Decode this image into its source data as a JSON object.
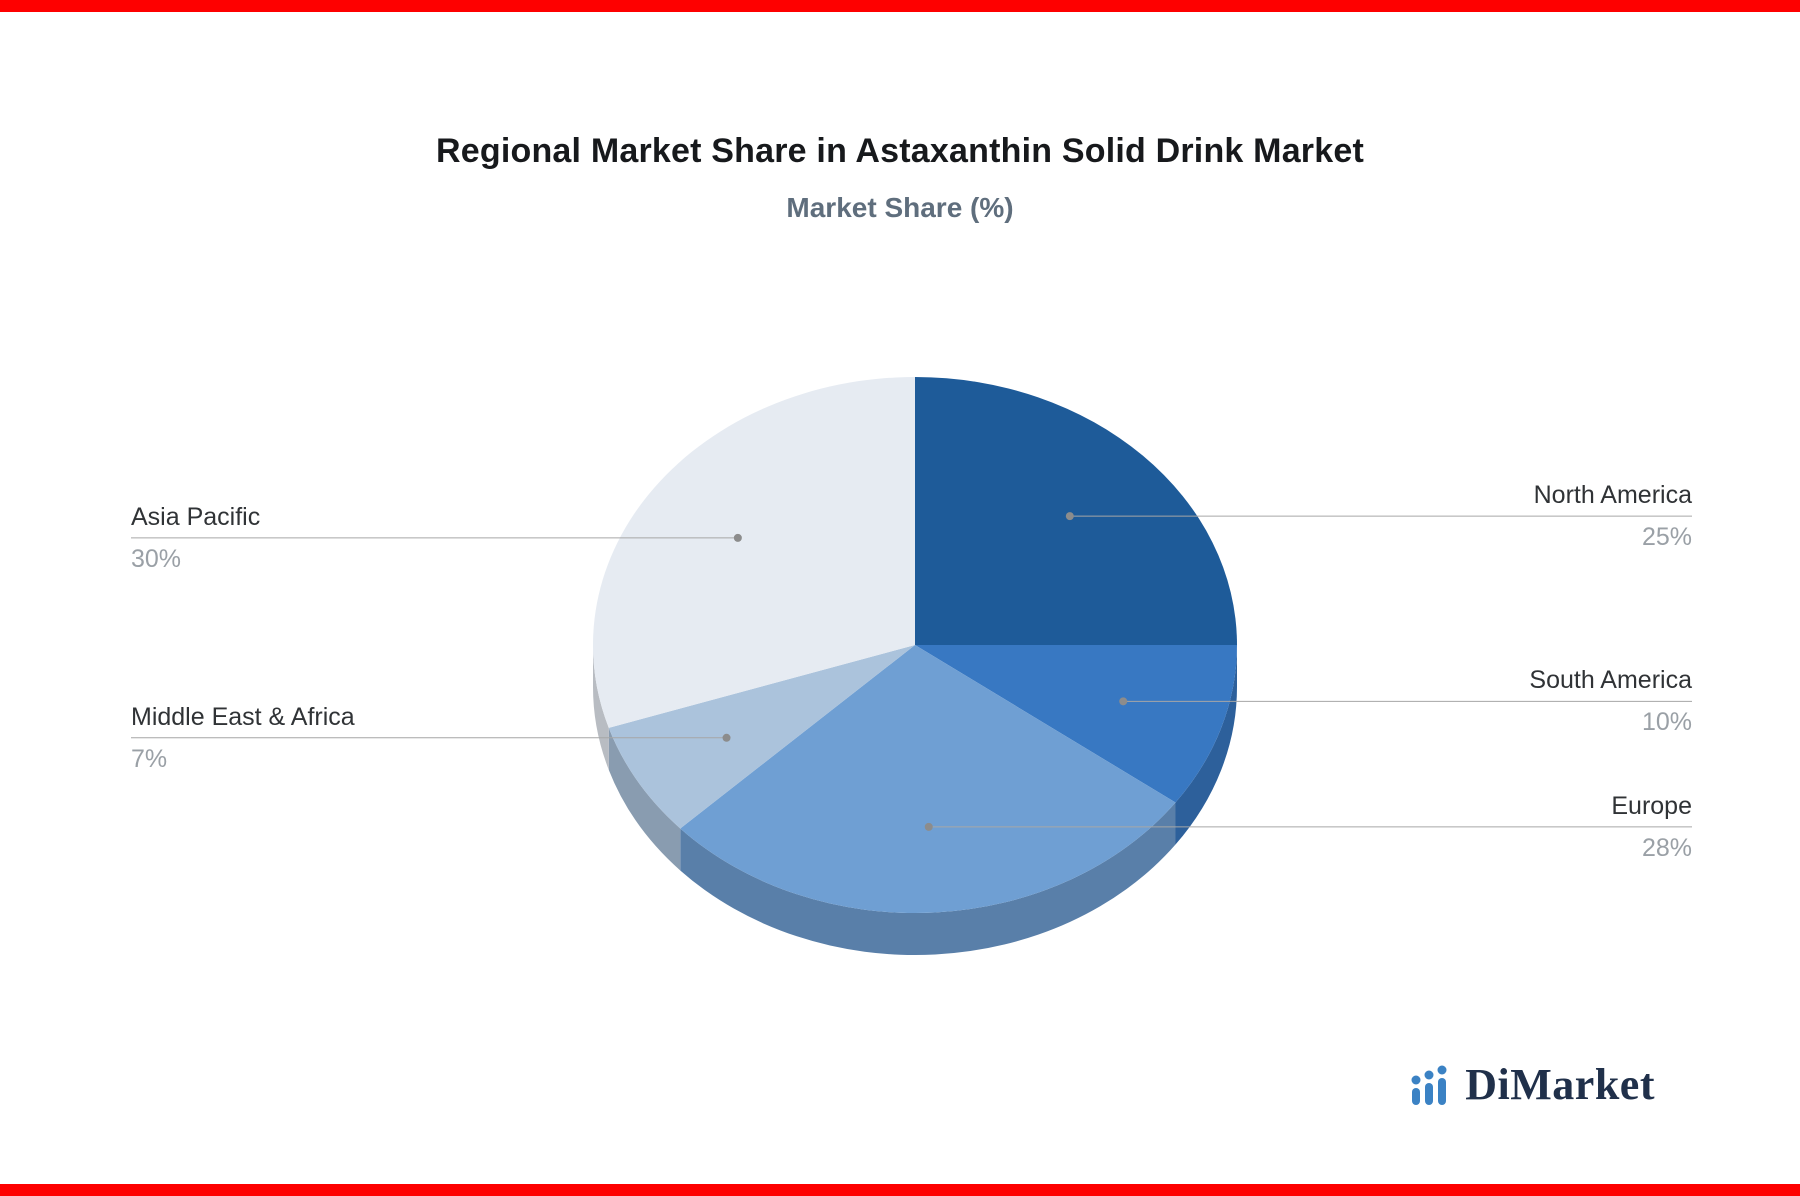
{
  "page": {
    "top_bar_color": "#fe0000",
    "bottom_bar_color": "#fe0000",
    "background": "#ffffff"
  },
  "chart_data": {
    "type": "pie",
    "title": "Regional Market Share in Astaxanthin Solid Drink Market",
    "subtitle": "Market Share (%)",
    "categories": [
      "North America",
      "South America",
      "Europe",
      "Middle East & Africa",
      "Asia Pacific"
    ],
    "values": [
      25,
      10,
      28,
      7,
      30
    ],
    "display_values": [
      "25%",
      "10%",
      "28%",
      "7%",
      "30%"
    ],
    "colors": [
      "#1e5b99",
      "#3878c2",
      "#6f9fd3",
      "#abc3dc",
      "#e6ebf2"
    ],
    "label_sides": [
      "right",
      "right",
      "right",
      "left",
      "left"
    ],
    "start_angle_deg": 0,
    "direction": "clockwise",
    "style": "3d",
    "legend": "none",
    "connector_color": "#a6a6a6",
    "dot_color": "#8c8c8c",
    "label_name_color": "#303336",
    "label_value_color": "#9aa0a6"
  },
  "branding": {
    "logo_text": "DiMarket",
    "logo_icon": "bar-chart-logo-icon",
    "logo_text_color": "#20304a",
    "logo_icon_color": "#3b82c4"
  }
}
